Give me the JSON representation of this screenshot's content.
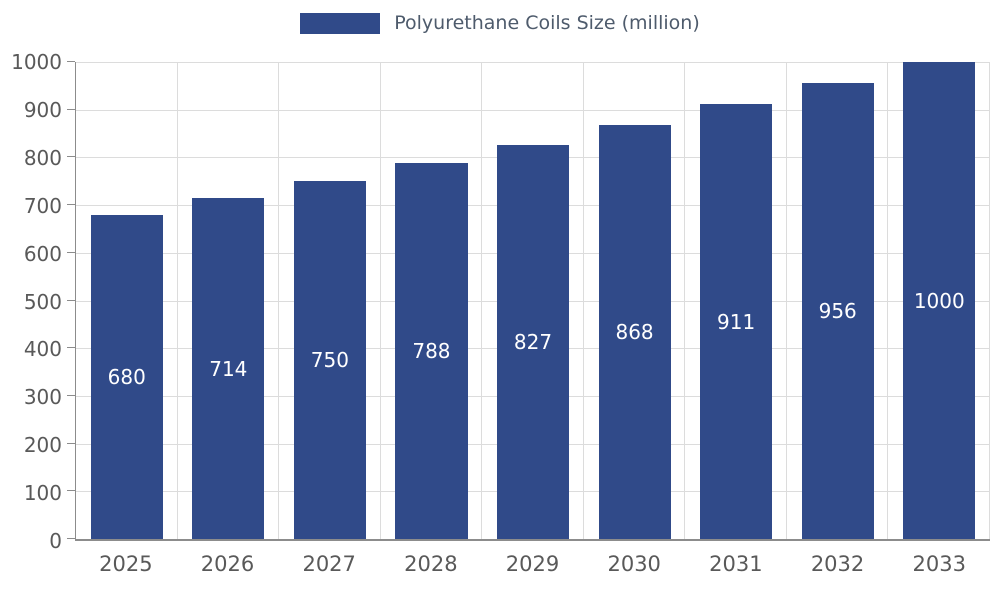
{
  "legend": {
    "label": "Polyurethane Coils Size (million)"
  },
  "colors": {
    "bar": "#304a89",
    "grid": "#dcdcdc",
    "axis": "#8c8c8c",
    "tick_text": "#595959",
    "legend_text": "#4e5b6c",
    "value_text": "#ffffff",
    "background": "#ffffff"
  },
  "chart_data": {
    "type": "bar",
    "title": "Polyurethane Coils Size (million)",
    "categories": [
      "2025",
      "2026",
      "2027",
      "2028",
      "2029",
      "2030",
      "2031",
      "2032",
      "2033"
    ],
    "values": [
      680,
      714,
      750,
      788,
      827,
      868,
      911,
      956,
      1000
    ],
    "xlabel": "",
    "ylabel": "",
    "ylim": [
      0,
      1000
    ],
    "y_ticks": [
      0,
      100,
      200,
      300,
      400,
      500,
      600,
      700,
      800,
      900,
      1000
    ],
    "grid": true,
    "legend_position": "top",
    "value_label_position": "inside-center"
  }
}
